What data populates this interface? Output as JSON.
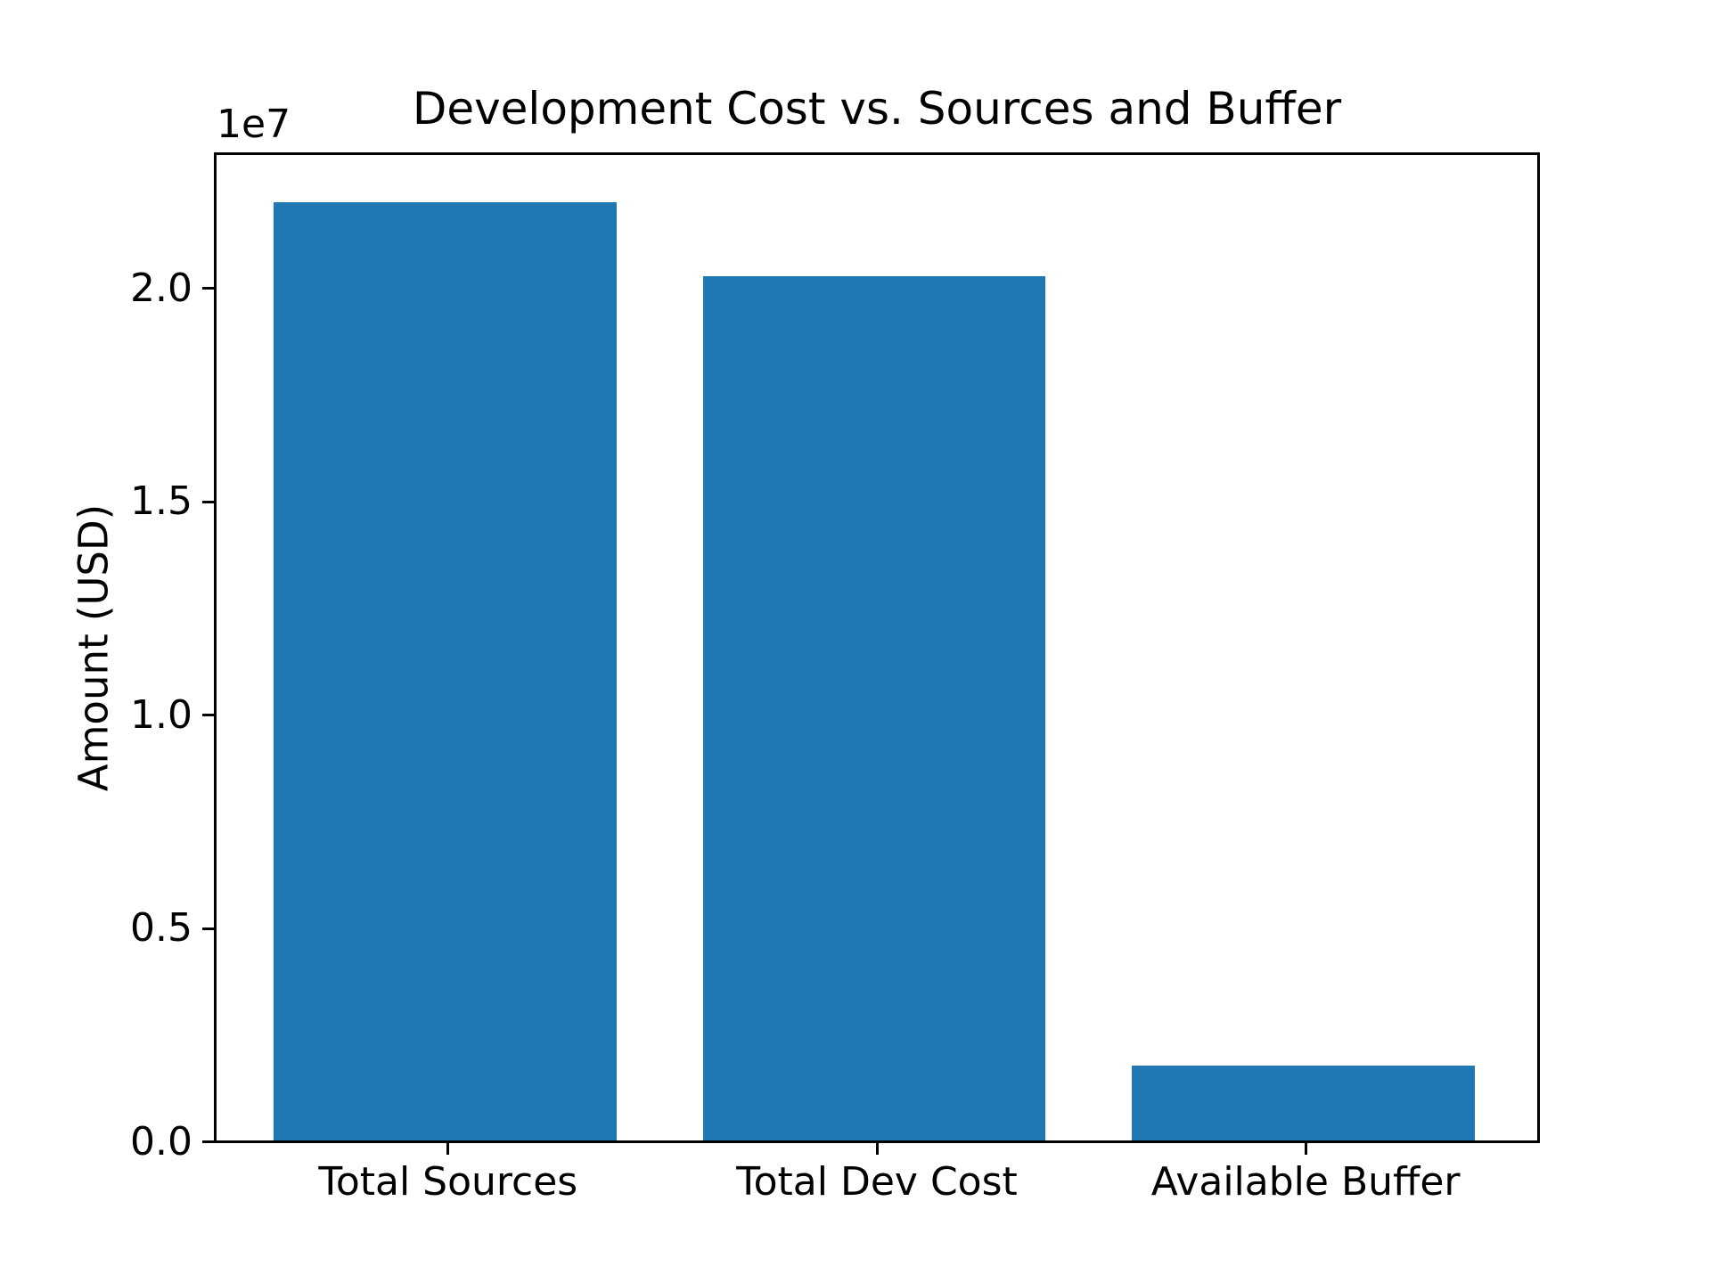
{
  "chart_data": {
    "type": "bar",
    "title": "Development Cost vs. Sources and Buffer",
    "ylabel": "Amount (USD)",
    "xlabel": "",
    "offset_text": "1e7",
    "categories": [
      "Total Sources",
      "Total Dev Cost",
      "Available Buffer"
    ],
    "values": [
      22000000,
      20250000,
      1750000
    ],
    "bar_color": "#1f77b4",
    "text_color": "#000000",
    "background_color": "#ffffff",
    "ylim": [
      0,
      23100000
    ],
    "yticks": [
      0,
      5000000,
      10000000,
      15000000,
      20000000
    ],
    "ytick_labels": [
      "0.0",
      "0.5",
      "1.0",
      "1.5",
      "2.0"
    ],
    "xlim": [
      -0.54,
      2.54
    ],
    "bar_width": 0.8,
    "grid": false,
    "legend": "none"
  }
}
